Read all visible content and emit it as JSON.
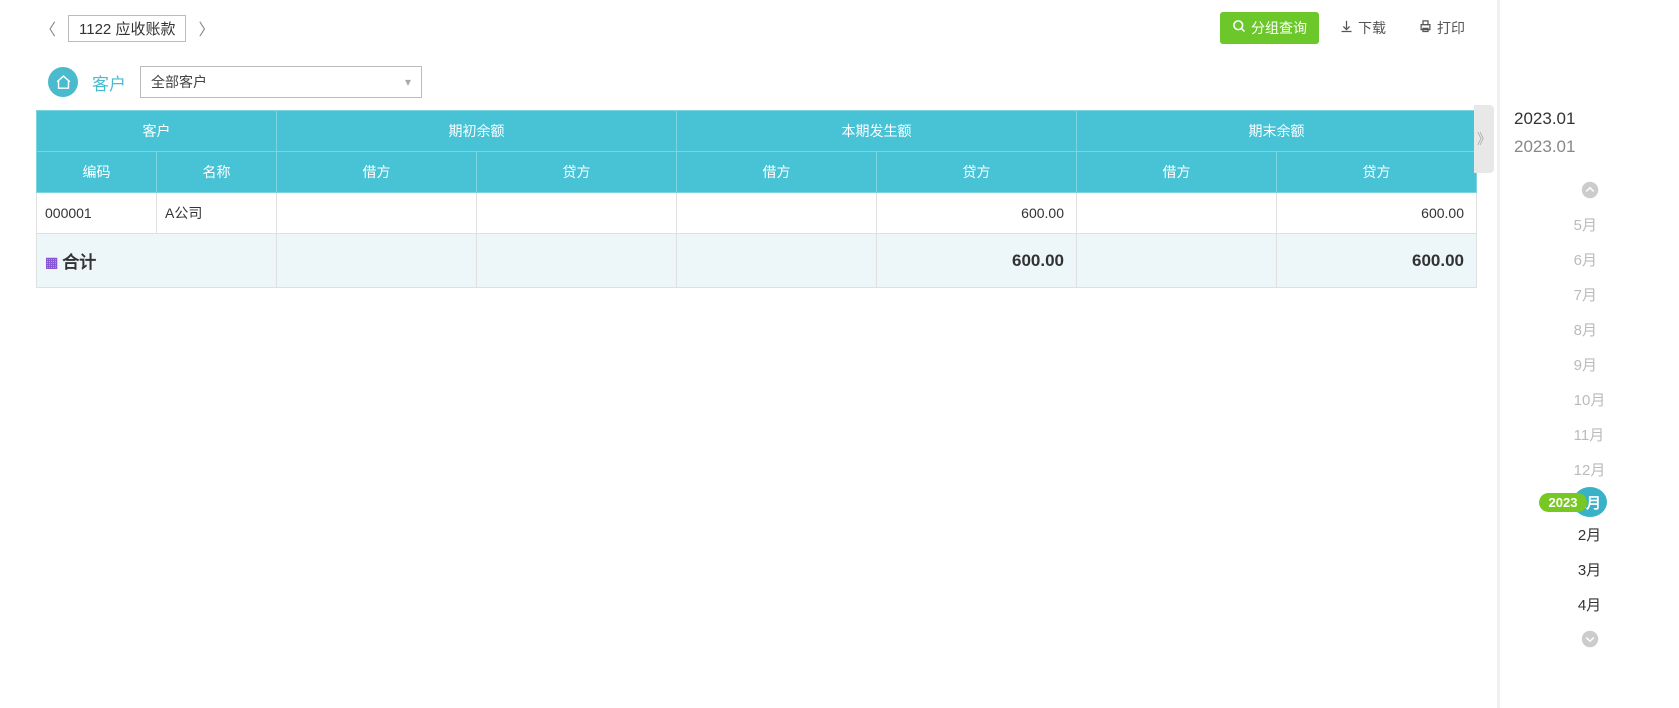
{
  "topbar": {
    "account_label": "1122  应收账款",
    "group_query_label": "分组查询",
    "download_label": "下载",
    "print_label": "打印"
  },
  "subbar": {
    "home_title": "客户",
    "customer_select_value": "全部客户"
  },
  "table": {
    "header_group_customer": "客户",
    "header_group_opening": "期初余额",
    "header_group_current": "本期发生额",
    "header_group_ending": "期末余额",
    "col_code": "编码",
    "col_name": "名称",
    "col_debit": "借方",
    "col_credit": "贷方",
    "row1": {
      "code": "000001",
      "name": "A公司",
      "opening_debit": "",
      "opening_credit": "",
      "current_debit": "",
      "current_credit": "600.00",
      "ending_debit": "",
      "ending_credit": "600.00"
    },
    "total": {
      "label": "合计",
      "current_credit": "600.00",
      "ending_credit": "600.00"
    }
  },
  "rail": {
    "period_from": "2023.01",
    "period_to": "2023.01",
    "year_badge": "2023",
    "months_past": [
      "5月",
      "6月",
      "7月",
      "8月",
      "9月",
      "10月",
      "11月",
      "12月"
    ],
    "month_active": "1月",
    "months_future": [
      "2月",
      "3月",
      "4月"
    ]
  }
}
